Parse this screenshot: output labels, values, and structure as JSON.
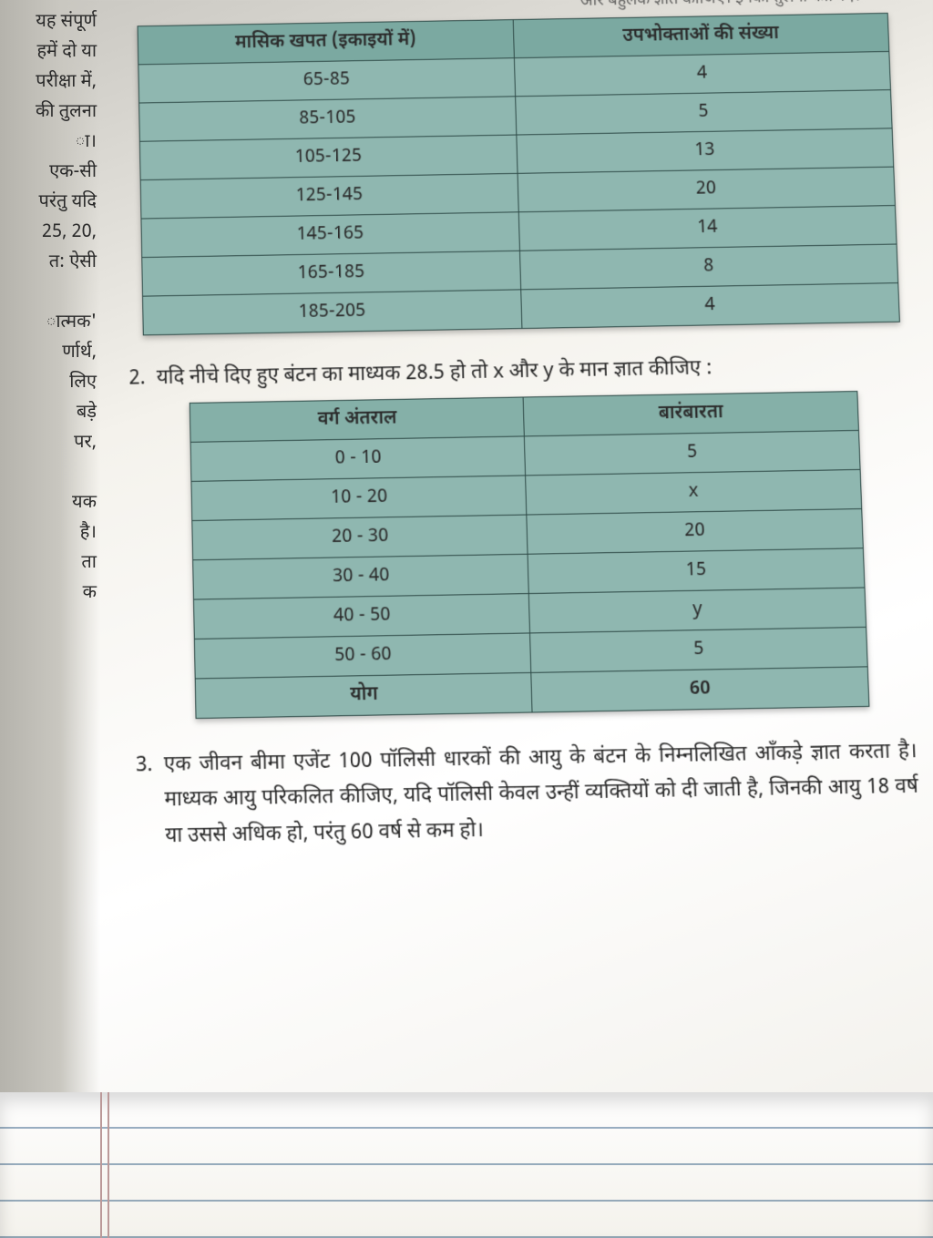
{
  "colors": {
    "table_bg": "#8fb7b0",
    "table_header_bg": "#7ba9a1",
    "table_border": "#2e4a47",
    "text": "#2a2a2a",
    "page_bg_light": "#ffffff",
    "page_bg_dark": "#c8c6c0",
    "rule_line": "#9ab0c4"
  },
  "left_gutter": [
    "यह संपूर्ण",
    "हमें दो या",
    "परीक्षा में,",
    "की तुलना",
    "ा।",
    "एक-सी",
    "परंतु यदि",
    "25, 20,",
    "त: ऐसी",
    "",
    "ात्मक'",
    "र्णार्थ,",
    "लिए",
    "बड़े",
    "पर,",
    "",
    "यक",
    "है।",
    "ता",
    "क"
  ],
  "instruction_tail": "और बहुलक ज्ञात कीजिए। इनकी तुलना कीजिए।",
  "table1": {
    "headers": [
      "मासिक खपत (इकाइयों में)",
      "उपभोक्ताओं की संख्या"
    ],
    "rows": [
      [
        "65-85",
        "4"
      ],
      [
        "85-105",
        "5"
      ],
      [
        "105-125",
        "13"
      ],
      [
        "125-145",
        "20"
      ],
      [
        "145-165",
        "14"
      ],
      [
        "165-185",
        "8"
      ],
      [
        "185-205",
        "4"
      ]
    ]
  },
  "q2": {
    "num": "2.",
    "text": "यदि नीचे दिए हुए बंटन का माध्यक 28.5 हो तो x और y के मान ज्ञात कीजिए :"
  },
  "table2": {
    "headers": [
      "वर्ग अंतराल",
      "बारंबारता"
    ],
    "rows": [
      [
        "0 - 10",
        "5"
      ],
      [
        "10 - 20",
        "x"
      ],
      [
        "20 - 30",
        "20"
      ],
      [
        "30 - 40",
        "15"
      ],
      [
        "40 - 50",
        "y"
      ],
      [
        "50 - 60",
        "5"
      ]
    ],
    "footer": [
      "योग",
      "60"
    ]
  },
  "q3": {
    "num": "3.",
    "text": "एक जीवन बीमा एजेंट 100 पॉलिसी धारकों की आयु के बंटन के निम्नलिखित आँकड़े ज्ञात करता है। माध्यक आयु परिकलित कीजिए, यदि पॉलिसी केवल उन्हीं व्यक्तियों को दी जाती है, जिनकी आयु 18 वर्ष या उससे अधिक हो, परंतु 60 वर्ष से कम हो।"
  }
}
